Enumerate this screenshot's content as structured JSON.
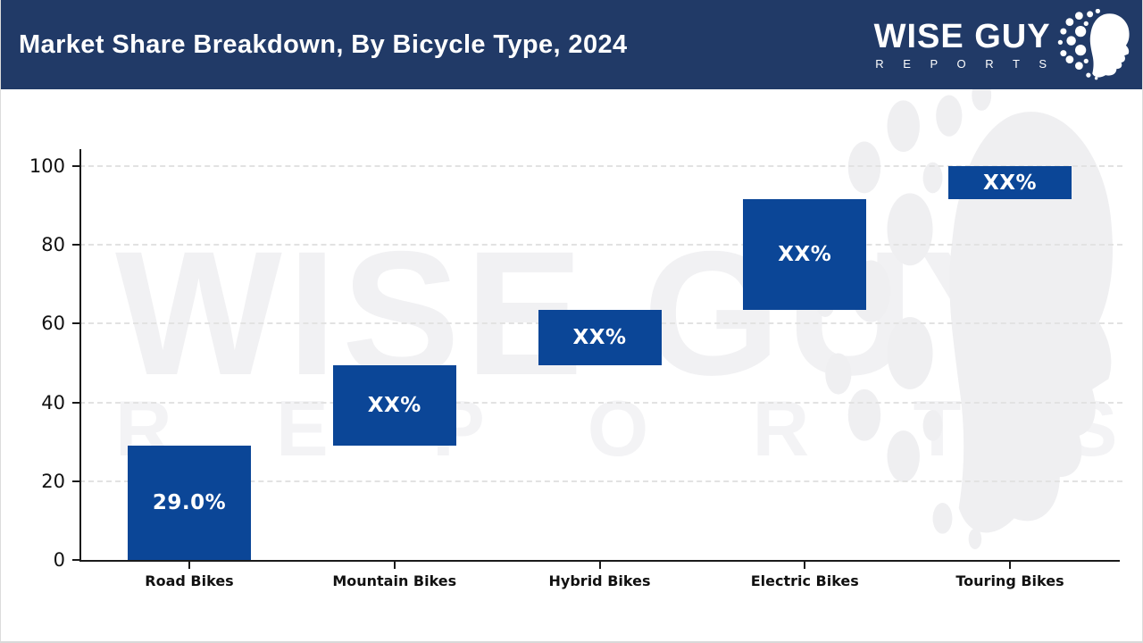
{
  "header": {
    "title": "Market Share Breakdown, By Bicycle Type, 2024",
    "bg_color": "#213a67",
    "logo": {
      "line1": "WISE GUY",
      "line2": "R E P O R T S"
    }
  },
  "watermark": {
    "line1": "WISE GUY",
    "line2": "R E P O R T S"
  },
  "chart_data": {
    "type": "bar",
    "subtype": "waterfall",
    "title": "Market Share Breakdown, By Bicycle Type, 2024",
    "categories": [
      "Road Bikes",
      "Mountain Bikes",
      "Hybrid Bikes",
      "Electric Bikes",
      "Touring Bikes"
    ],
    "segments": [
      {
        "category": "Road Bikes",
        "start": 0,
        "end": 29,
        "value": 29.0,
        "label": "29.0%"
      },
      {
        "category": "Mountain Bikes",
        "start": 29,
        "end": 49.5,
        "value": 20.5,
        "label": "XX%"
      },
      {
        "category": "Hybrid Bikes",
        "start": 49.5,
        "end": 63.5,
        "value": 14.0,
        "label": "XX%"
      },
      {
        "category": "Electric Bikes",
        "start": 63.5,
        "end": 91.5,
        "value": 28.0,
        "label": "XX%"
      },
      {
        "category": "Touring Bikes",
        "start": 91.5,
        "end": 100,
        "value": 8.5,
        "label": "XX%"
      }
    ],
    "y_ticks": [
      0,
      20,
      40,
      60,
      80,
      100
    ],
    "ylim": [
      0,
      105
    ],
    "xlabel": "",
    "ylabel": "",
    "bar_color": "#0b4697",
    "bar_label_color": "#ffffff",
    "grid": "dashed-horizontal",
    "legend": "none"
  }
}
